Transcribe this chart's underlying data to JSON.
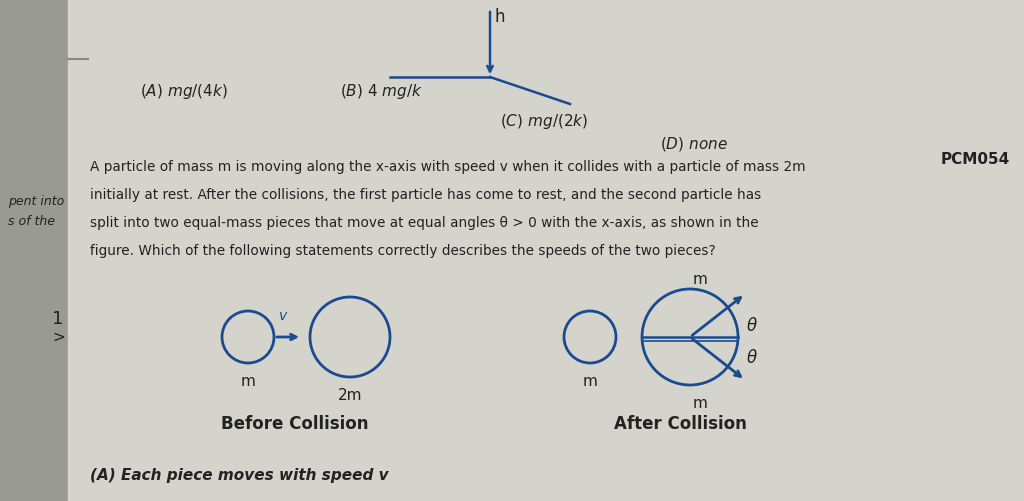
{
  "bg_color": "#c8c8c0",
  "left_col_color": "#a8a8a0",
  "page_color": "#d8d8d0",
  "text_color": "#1a1a1a",
  "blue_color": "#1a4a90",
  "dark_color": "#222222",
  "main_text_lines": [
    "A particle of mass m is moving along the x-axis with speed v when it collides with a particle of mass 2m",
    "initially at rest. After the collisions, the first particle has come to rest, and the second particle has",
    "split into two equal-mass pieces that move at equal angles θ > 0 with the x-axis, as shown in the",
    "figure. Which of the following statements correctly describes the speeds of the two pieces?"
  ],
  "before_label": "Before Collision",
  "after_label": "After Collision",
  "bottom_text": "(A) Each piece moves with speed v"
}
